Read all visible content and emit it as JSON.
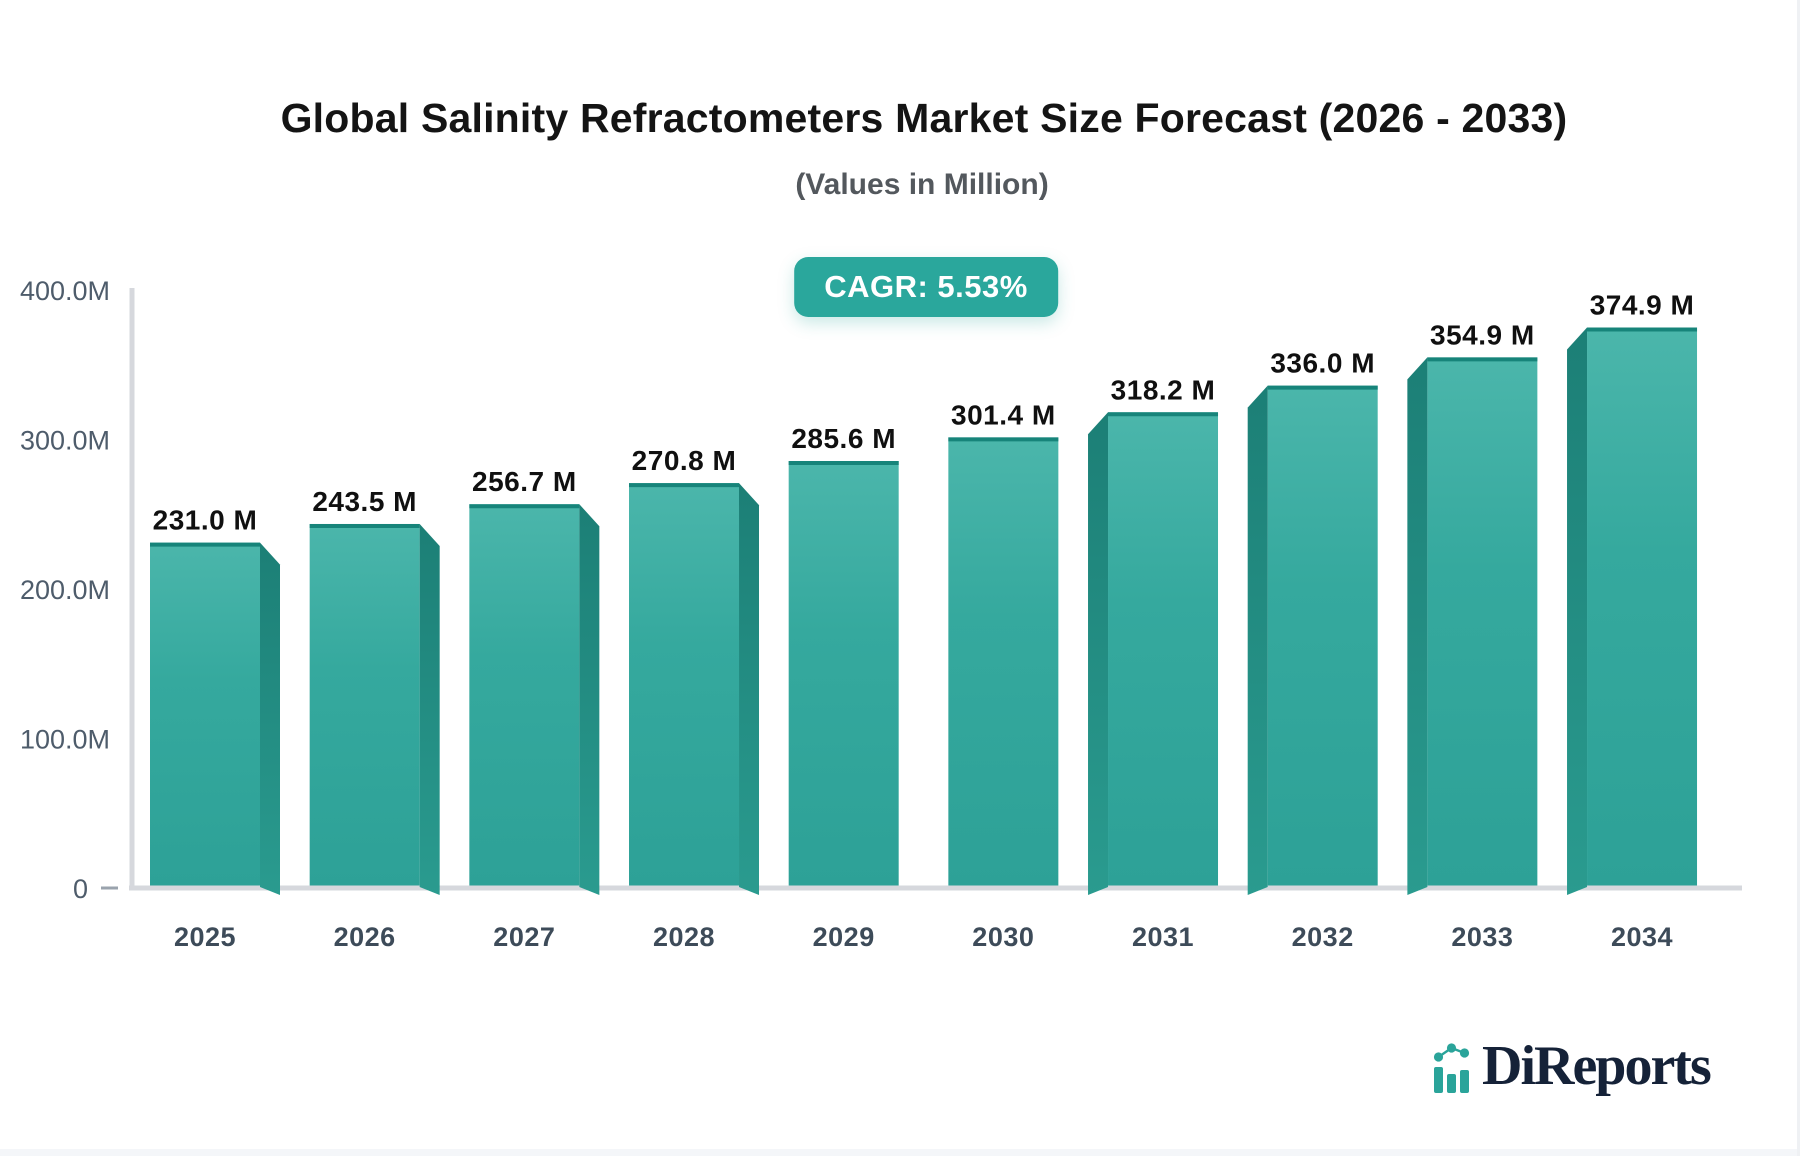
{
  "chart_data": {
    "type": "bar",
    "title": "Global Salinity Refractometers Market Size Forecast (2026 - 2033)",
    "subtitle": "(Values in Million)",
    "cagr_badge": "CAGR: 5.53%",
    "categories": [
      "2025",
      "2026",
      "2027",
      "2028",
      "2029",
      "2030",
      "2031",
      "2032",
      "2033",
      "2034"
    ],
    "values": [
      231.0,
      243.5,
      256.7,
      270.8,
      285.6,
      301.4,
      318.2,
      336.0,
      354.9,
      374.9
    ],
    "value_labels": [
      "231.0 M",
      "243.5 M",
      "256.7 M",
      "270.8 M",
      "285.6 M",
      "301.4 M",
      "318.2 M",
      "336.0 M",
      "354.9 M",
      "374.9 M"
    ],
    "y_ticks": [
      {
        "value": 400,
        "label": "400.0M"
      },
      {
        "value": 300,
        "label": "300.0M"
      },
      {
        "value": 200,
        "label": "200.0M"
      },
      {
        "value": 100,
        "label": "100.0M"
      },
      {
        "value": 0,
        "label": "0"
      }
    ],
    "ylim": [
      0,
      400
    ],
    "xlabel": "",
    "ylabel": "",
    "grid": "off",
    "legend": "none",
    "depth_side": [
      "right",
      "right",
      "right",
      "right",
      "none",
      "none",
      "left",
      "left",
      "left",
      "left"
    ],
    "colors": {
      "bar_top": "#4bb6ab",
      "bar_mid": "#35a99e",
      "bar_bottom": "#2da197",
      "bar_edge": "#17847a",
      "depth_top": "#1c7f76",
      "depth_bottom": "#2a9b8f",
      "badge_bg": "#2aa79c",
      "axis_line": "#d6d8dd",
      "zero_tick": "#9aa3ad",
      "y_tick_text": "#4e5c6b",
      "x_tick_text": "#3d4b59",
      "value_text": "#101010",
      "logo_teal": "#2aa49a",
      "logo_navy": "#152238"
    }
  },
  "logo": {
    "text": "DiReports"
  }
}
